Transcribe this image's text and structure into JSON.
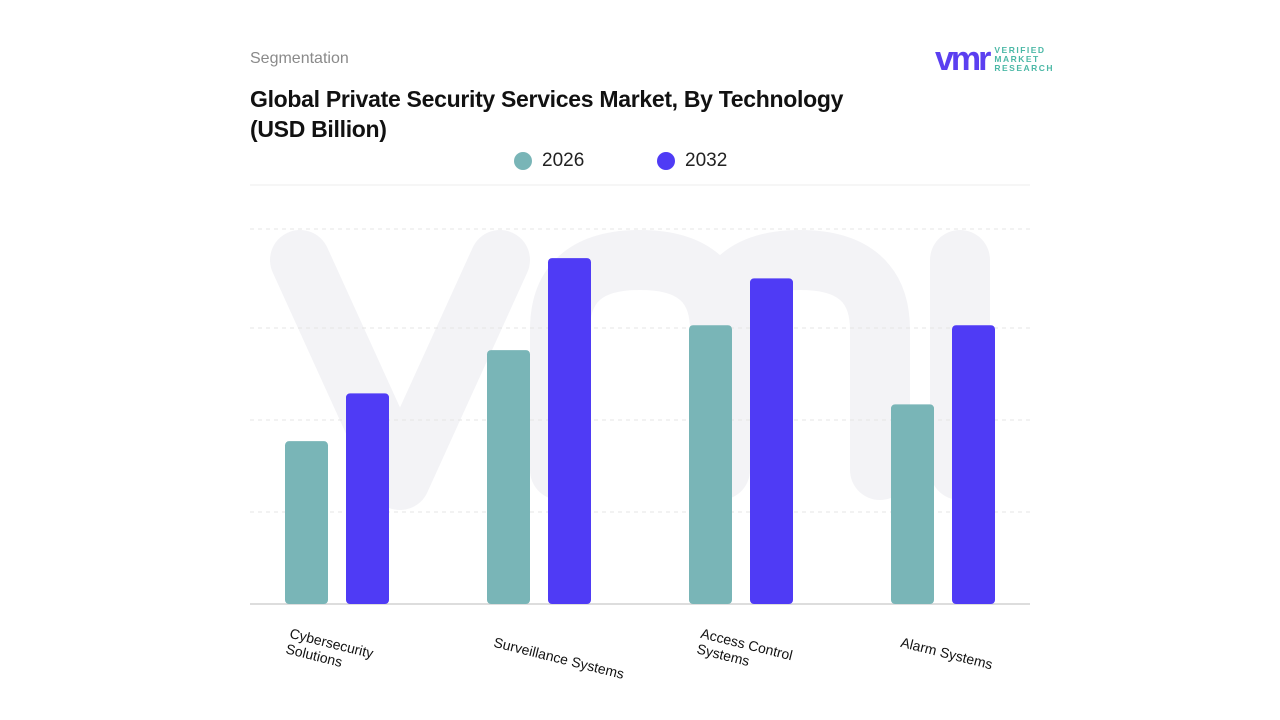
{
  "header": {
    "section": "Segmentation",
    "title_line1": "Global Private Security Services Market, By Technology",
    "title_line2": "(USD Billion)"
  },
  "logo": {
    "mark": "vmr",
    "line1": "VERIFIED",
    "line2": "MARKET",
    "line3": "RESEARCH"
  },
  "chart_data": {
    "type": "bar",
    "title": "Global Private Security Services Market, By Technology (USD Billion)",
    "categories": [
      "Cybersecurity Solutions",
      "Surveillance Systems",
      "Access Control Systems",
      "Alarm Systems"
    ],
    "series": [
      {
        "name": "2026",
        "color": "#79b5b7",
        "values": [
          1.77,
          2.76,
          3.03,
          2.17
        ]
      },
      {
        "name": "2032",
        "color": "#4f3bf5",
        "values": [
          2.29,
          3.76,
          3.54,
          3.03
        ]
      }
    ],
    "ylim": [
      0,
      4.1
    ],
    "grid": true,
    "legend": "top",
    "note_values": "relative bar heights; no y-axis values printed"
  }
}
